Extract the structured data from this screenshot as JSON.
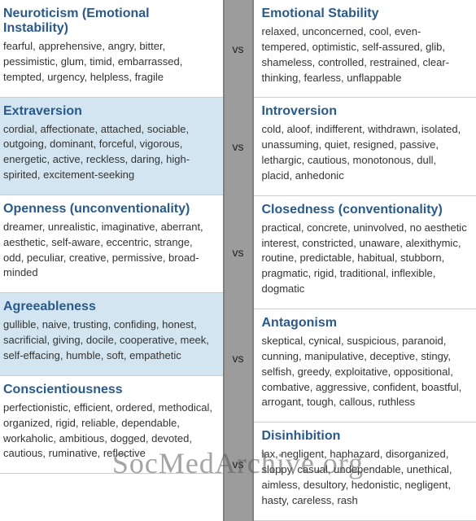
{
  "vs_label": "vs",
  "watermark": "SocMedArchive.org",
  "rows": [
    {
      "left": {
        "title": "Neuroticism (Emotional Instability)",
        "desc": "fearful, apprehensive, angry, bitter, pessimistic, glum, timid, embarrassed, tempted, urgency, helpless, fragile",
        "bg": "white"
      },
      "right": {
        "title": "Emotional Stability",
        "desc": "relaxed, unconcerned, cool, even-tempered, optimistic, self-assured, glib, shameless, controlled, restrained, clear-thinking, fearless, unflappable",
        "bg": "white"
      }
    },
    {
      "left": {
        "title": "Extraversion",
        "desc": "cordial, affectionate, attached, sociable, outgoing, dominant, forceful, vigorous, energetic, active, reckless, daring, high-spirited, excitement-seeking",
        "bg": "blue"
      },
      "right": {
        "title": "Introversion",
        "desc": "cold, aloof, indifferent, withdrawn, isolated, unassuming, quiet, resigned, passive, lethargic, cautious, monotonous, dull, placid, anhedonic",
        "bg": "white"
      }
    },
    {
      "left": {
        "title": "Openness (unconventionality)",
        "desc": "dreamer, unrealistic, imaginative, aberrant, aesthetic, self-aware, eccentric, strange, odd, peculiar, creative, permissive, broad-minded",
        "bg": "white"
      },
      "right": {
        "title": "Closedness (conventionality)",
        "desc": "practical, concrete, uninvolved, no aesthetic interest, constricted, unaware, alexithymic, routine, predictable, habitual, stubborn, pragmatic, rigid, traditional, inflexible, dogmatic",
        "bg": "white"
      }
    },
    {
      "left": {
        "title": "Agreeableness",
        "desc": "gullible, naive, trusting, confiding, honest, sacrificial, giving, docile, cooperative, meek, self-effacing, humble, soft, empathetic",
        "bg": "blue"
      },
      "right": {
        "title": "Antagonism",
        "desc": "skeptical, cynical, suspicious, paranoid, cunning, manipulative, deceptive, stingy, selfish, greedy, exploitative, oppositional, combative, aggressive, confident, boastful, arrogant, tough, callous, ruthless",
        "bg": "white"
      }
    },
    {
      "left": {
        "title": "Conscientiousness",
        "desc": "perfectionistic, efficient, ordered, methodical, organized, rigid, reliable, dependable, workaholic, ambitious, dogged, devoted, cautious, ruminative, reflective",
        "bg": "white"
      },
      "right": {
        "title": "Disinhibition",
        "desc": "lax, negligent, haphazard, disorganized, sloppy, casual, undependable, unethical, aimless, desultory, hedonistic, negligent, hasty, careless, rash",
        "bg": "white"
      }
    }
  ]
}
